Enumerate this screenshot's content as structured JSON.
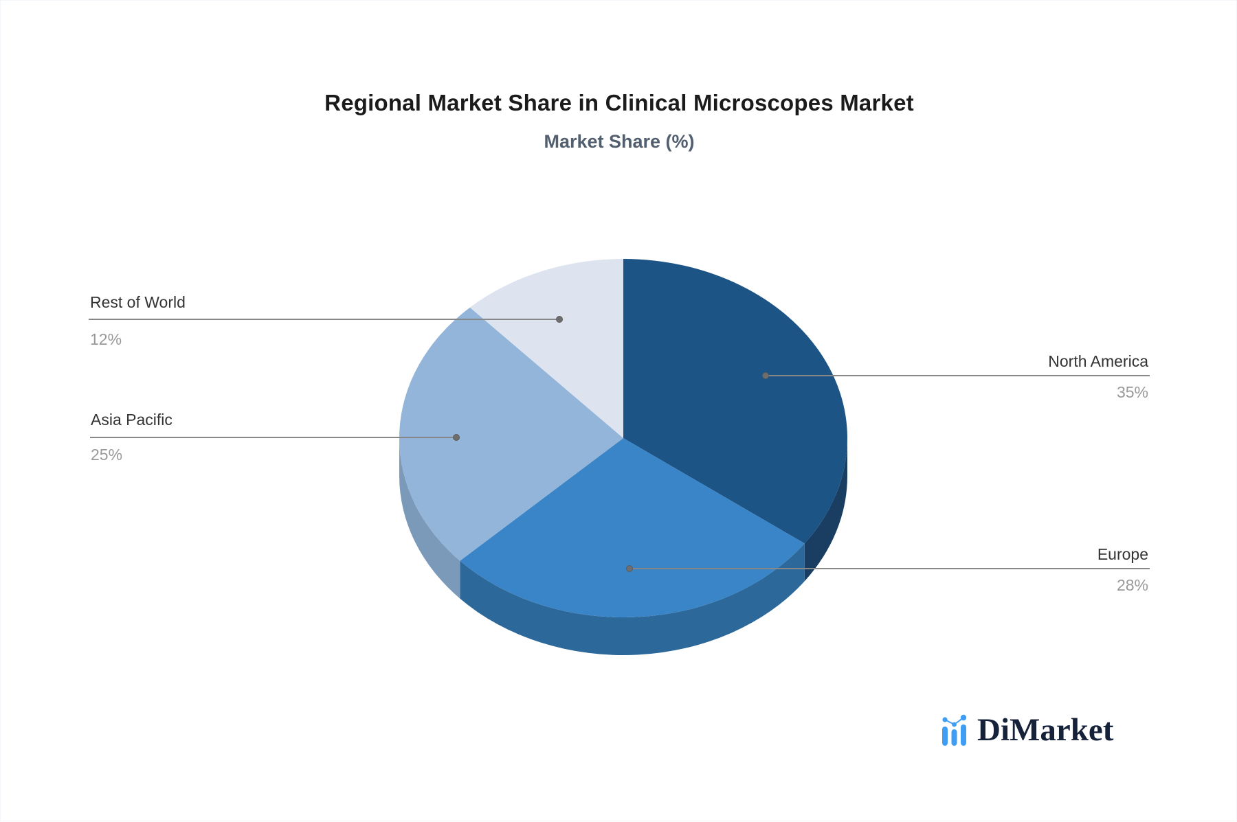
{
  "header": {
    "title": "Regional Market Share in Clinical Microscopes Market",
    "subtitle": "Market Share (%)"
  },
  "chart_data": {
    "type": "pie",
    "style": "3d",
    "title": "Regional Market Share in Clinical Microscopes Market",
    "subtitle": "Market Share (%)",
    "unit": "%",
    "start_angle": "12-oclock",
    "direction": "clockwise",
    "legend_position": "callout-labels",
    "slices": [
      {
        "label": "North America",
        "value": 35,
        "display": "35%",
        "color": "#1d5486",
        "side_color": "#1a3e62"
      },
      {
        "label": "Europe",
        "value": 28,
        "display": "28%",
        "color": "#3a85c8",
        "side_color": "#2c6899"
      },
      {
        "label": "Asia Pacific",
        "value": 25,
        "display": "25%",
        "color": "#93b5d9",
        "side_color": "#7b99b8"
      },
      {
        "label": "Rest of World",
        "value": 12,
        "display": "12%",
        "color": "#dde4ef",
        "side_color": "#b9c0cc"
      }
    ]
  },
  "branding": {
    "logo_text": "DiMarket",
    "logo_icon": "bar-line-chart-icon",
    "icon_color": "#3f9df3",
    "text_color": "#16213a"
  },
  "colors": {
    "title": "#1b1b1b",
    "subtitle": "#525f6e",
    "label_text": "#333333",
    "pct_text": "#999999",
    "leader_line": "#878787",
    "leader_dot": "#6e6e6e",
    "background": "#ffffff"
  }
}
